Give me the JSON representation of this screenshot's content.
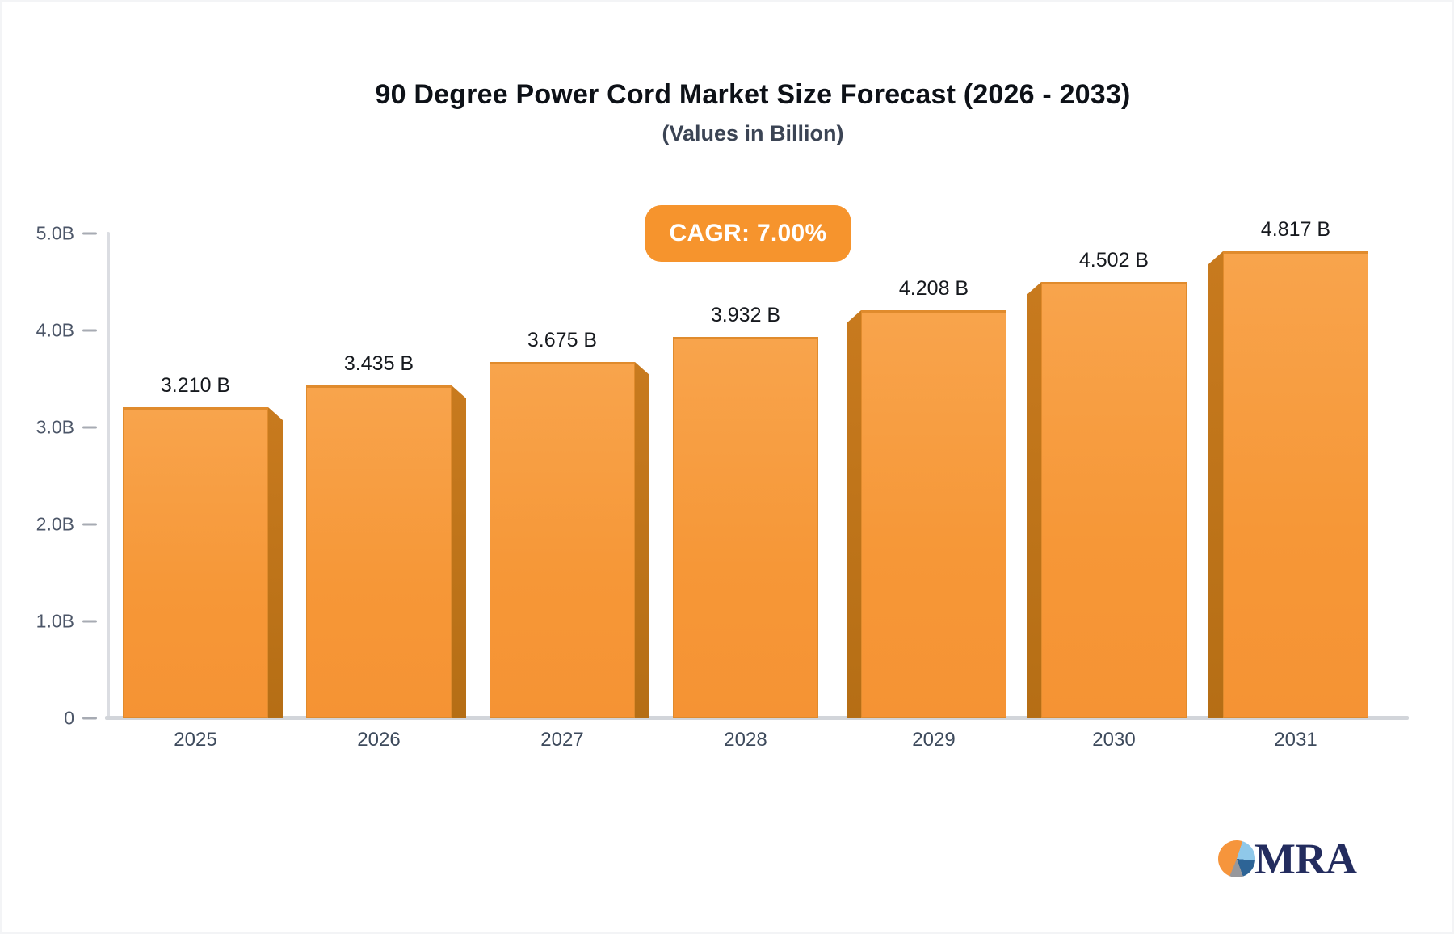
{
  "header": {
    "title": "90 Degree Power Cord Market Size Forecast (2026 - 2033)",
    "subtitle": "(Values in Billion)"
  },
  "badge": {
    "label": "CAGR: 7.00%",
    "bg_color": "#F6942D",
    "text_color": "#FFFFFF"
  },
  "chart_data": {
    "type": "bar",
    "title": "90 Degree Power Cord Market Size Forecast (2026 - 2033)",
    "subtitle": "(Values in Billion)",
    "unit": "Billion",
    "cagr_annotation": "CAGR: 7.00%",
    "categories": [
      "2025",
      "2026",
      "2027",
      "2028",
      "2029",
      "2030",
      "2031"
    ],
    "values": [
      3.21,
      3.435,
      3.675,
      3.932,
      4.208,
      4.502,
      4.817
    ],
    "value_labels": [
      "3.210 B",
      "3.435 B",
      "3.675 B",
      "3.932 B",
      "4.208 B",
      "4.502 B",
      "4.817 B"
    ],
    "y_tick_labels": [
      "5.0B",
      "4.0B",
      "3.0B",
      "2.0B",
      "1.0B",
      "0"
    ],
    "y_tick_values": [
      5,
      4,
      3,
      2,
      1,
      0
    ],
    "ylim": [
      0,
      5
    ],
    "grid": false,
    "legend": false,
    "bar_color": "#F79B3F",
    "bar_side_color": "#BE741C",
    "axis_color": "#D2D5DA",
    "tick_text_color": "#4C5668"
  },
  "logo": {
    "text": "MRA",
    "text_color": "#232C5E",
    "pie_colors": [
      "#F6953C",
      "#8FC8E9",
      "#2D6496",
      "#98989C"
    ]
  }
}
